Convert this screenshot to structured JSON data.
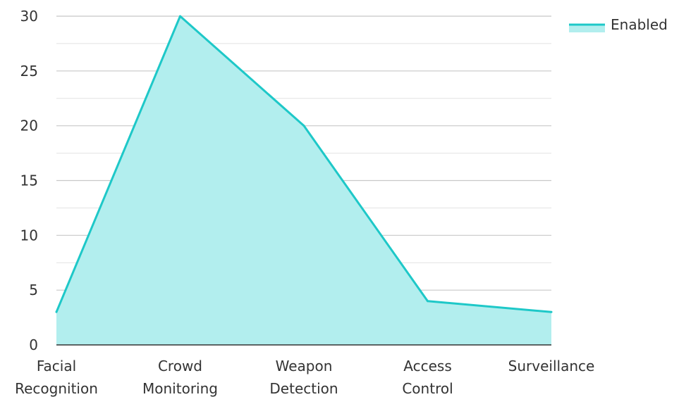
{
  "chart_data": {
    "type": "area",
    "categories": [
      [
        "Facial",
        "Recognition"
      ],
      [
        "Crowd",
        "Monitoring"
      ],
      [
        "Weapon",
        "Detection"
      ],
      [
        "Access",
        "Control"
      ],
      [
        "Surveillance"
      ]
    ],
    "series": [
      {
        "name": "Enabled",
        "values": [
          3,
          30,
          20,
          4,
          3
        ]
      }
    ],
    "ylim": [
      0,
      30
    ],
    "yticks": [
      0,
      5,
      10,
      15,
      20,
      25,
      30
    ],
    "grid": true,
    "legend_position": "top-right",
    "colors": {
      "line": "#1ec8c8",
      "fill": "#b2eeee",
      "grid": "#c8c8c8",
      "axis": "#333333"
    }
  }
}
